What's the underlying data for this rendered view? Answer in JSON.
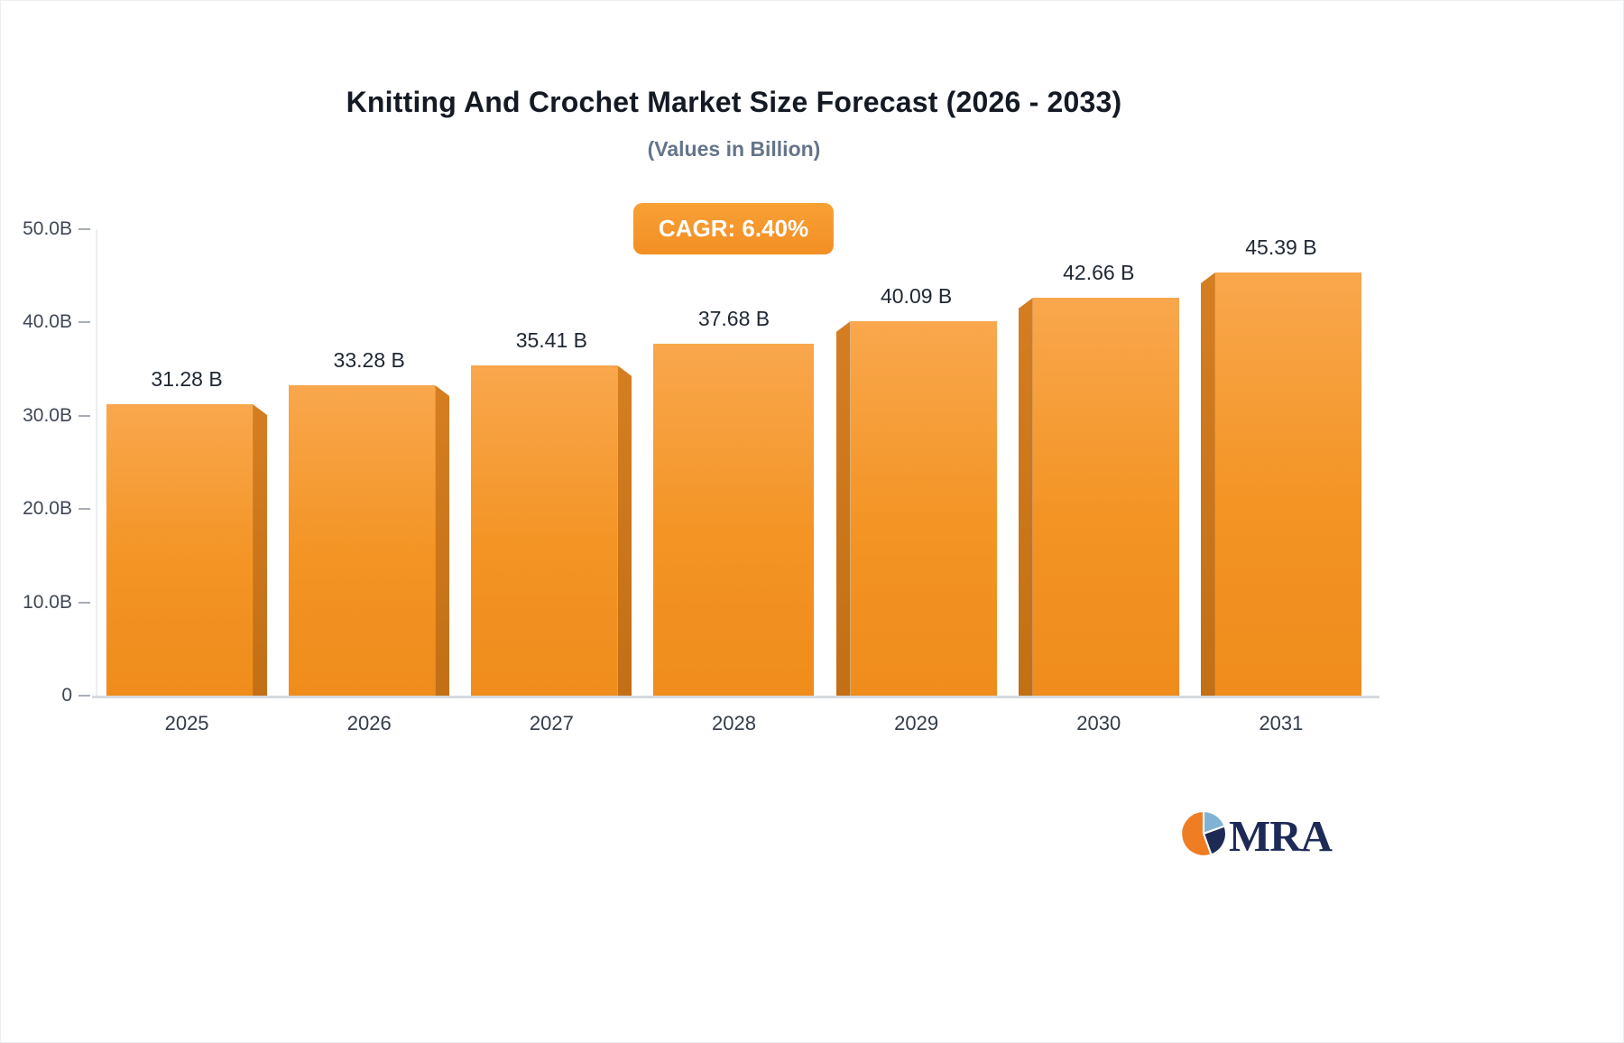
{
  "chart_data": {
    "type": "bar",
    "title": "Knitting And Crochet Market Size Forecast (2026 - 2033)",
    "subtitle": "(Values in Billion)",
    "badge_label": "CAGR: 6.40%",
    "categories": [
      "2025",
      "2026",
      "2027",
      "2028",
      "2029",
      "2030",
      "2031"
    ],
    "values": [
      31.28,
      33.28,
      35.41,
      37.68,
      40.09,
      42.66,
      45.39
    ],
    "value_labels": [
      "31.28 B",
      "33.28 B",
      "35.41 B",
      "37.68 B",
      "40.09 B",
      "42.66 B",
      "45.39 B"
    ],
    "yticks": [
      "50.0B",
      "40.0B",
      "30.0B",
      "20.0B",
      "10.0B",
      "0"
    ],
    "ylim": [
      0,
      50
    ],
    "xlabel": "",
    "ylabel": "",
    "grid": false,
    "legend": "none",
    "colors": {
      "bar_face_top": "#f9a74d",
      "bar_face_bottom": "#ef8c1c",
      "bar_side": "#c26f15",
      "badge_background": "#f79428",
      "badge_text": "#ffffff",
      "title_text": "#141a24",
      "subtitle_text": "#64748b",
      "axis_text": "#3f4753"
    }
  },
  "logo": {
    "text": "MRA",
    "icon": "pie-chart-logo-icon",
    "colors": {
      "orange": "#ee7d23",
      "navy": "#1e2a56",
      "blue": "#7fb3d5"
    }
  }
}
